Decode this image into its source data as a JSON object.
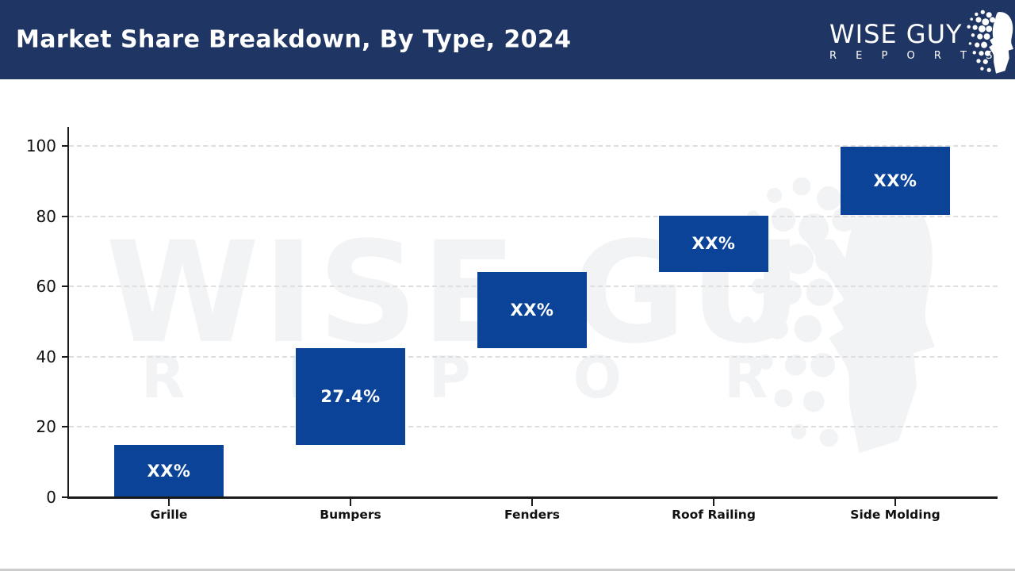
{
  "header": {
    "title": "Market Share Breakdown, By Type, 2024",
    "bg_color": "#1f3563",
    "logo": {
      "line1": "WISE GUY",
      "line2": "R E P O R T S"
    }
  },
  "watermark": {
    "line1": "WISE GUY",
    "line2": "R E P O R T S"
  },
  "chart_data": {
    "type": "bar",
    "subtype": "waterfall",
    "title": "Market Share Breakdown, By Type, 2024",
    "categories": [
      "Grille",
      "Bumpers",
      "Fenders",
      "Roof Railing",
      "Side Molding"
    ],
    "segments": [
      {
        "category": "Grille",
        "start": 0,
        "end": 15.0,
        "label": "XX%"
      },
      {
        "category": "Bumpers",
        "start": 15.0,
        "end": 42.4,
        "label": "27.4%"
      },
      {
        "category": "Fenders",
        "start": 42.4,
        "end": 64.2,
        "label": "XX%"
      },
      {
        "category": "Roof Railing",
        "start": 64.2,
        "end": 80.3,
        "label": "XX%"
      },
      {
        "category": "Side Molding",
        "start": 80.4,
        "end": 99.8,
        "label": "XX%"
      }
    ],
    "xlabel": "",
    "ylabel": "",
    "yticks": [
      0,
      20,
      40,
      60,
      80,
      100
    ],
    "ylim": [
      0,
      105.5
    ],
    "grid": "horizontal-dashed",
    "legend": "none",
    "bar_color": "#0b4399",
    "bar_label_color": "#ffffff",
    "axis_color": "#1a1a1a",
    "gridline_color": "#dedede"
  }
}
